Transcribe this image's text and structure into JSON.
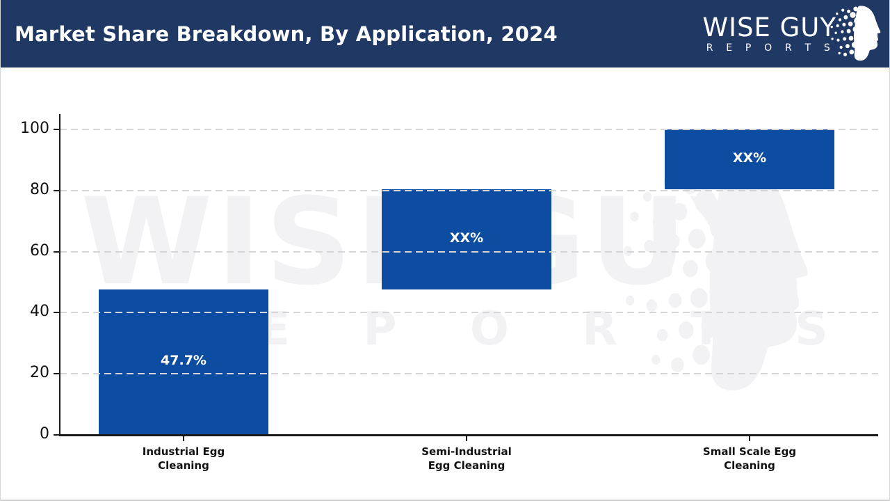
{
  "header": {
    "title": "Market Share Breakdown, By Application, 2024",
    "logo": {
      "line1": "WISE GUY",
      "line2": "REPORTS"
    }
  },
  "watermark": {
    "line1": "WISE GUY",
    "line2": "REPORTS"
  },
  "chart_data": {
    "type": "bar",
    "subtype": "waterfall",
    "title": "Market Share Breakdown, By Application, 2024",
    "categories": [
      [
        "Industrial Egg",
        "Cleaning"
      ],
      [
        "Semi-Industrial",
        "Egg Cleaning"
      ],
      [
        "Small Scale Egg",
        "Cleaning"
      ]
    ],
    "segments": [
      {
        "category": "Industrial Egg Cleaning",
        "start": 0,
        "end": 47.7,
        "value": 47.7,
        "label": "47.7%"
      },
      {
        "category": "Semi-Industrial Egg Cleaning",
        "start": 47.7,
        "end": 80.4,
        "value": 32.7,
        "label": "XX%"
      },
      {
        "category": "Small Scale Egg Cleaning",
        "start": 80.4,
        "end": 100,
        "value": 19.6,
        "label": "XX%"
      }
    ],
    "yticks": [
      0,
      20,
      40,
      60,
      80,
      100
    ],
    "ylim": [
      0,
      105
    ],
    "xlabel": "",
    "ylabel": "",
    "grid": "horizontal-dashed",
    "legend": "none",
    "bar_color": "#0c4da2",
    "bar_label_color": "#ffffff"
  },
  "colors": {
    "header_bg": "#1f3864",
    "header_text": "#ffffff",
    "bar": "#0c4da2",
    "bar_label": "#ffffff",
    "gridline": "#d6d6d6",
    "axis": "#1a1a1a",
    "tick_text": "#111111",
    "watermark": "#f2f2f4",
    "page_border": "#cfcfcf"
  }
}
